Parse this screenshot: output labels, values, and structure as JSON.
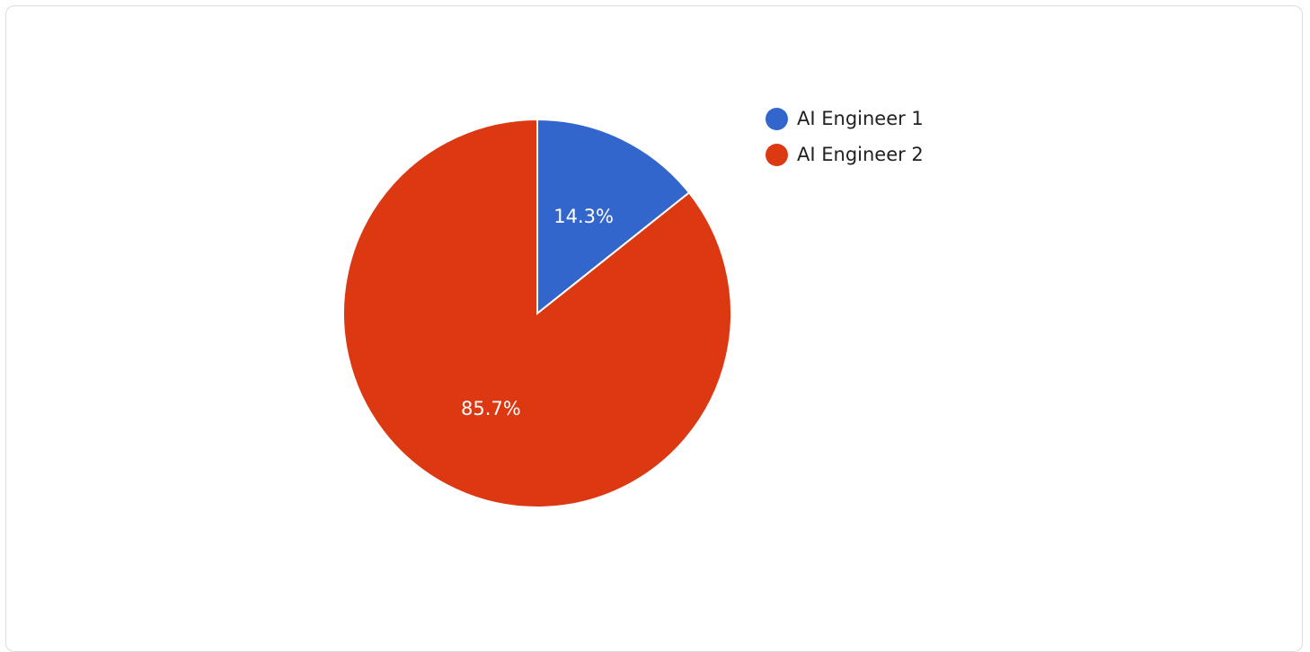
{
  "chart_data": {
    "type": "pie",
    "categories": [
      "AI Engineer 1",
      "AI Engineer 2"
    ],
    "values": [
      14.3,
      85.7
    ],
    "labels": [
      "14.3%",
      "85.7%"
    ],
    "colors": [
      "#3366cc",
      "#dc3912"
    ],
    "title": "",
    "legend_position": "right"
  },
  "legend": {
    "items": [
      {
        "label": "AI Engineer 1",
        "color": "#3366cc"
      },
      {
        "label": "AI Engineer 2",
        "color": "#dc3912"
      }
    ]
  }
}
